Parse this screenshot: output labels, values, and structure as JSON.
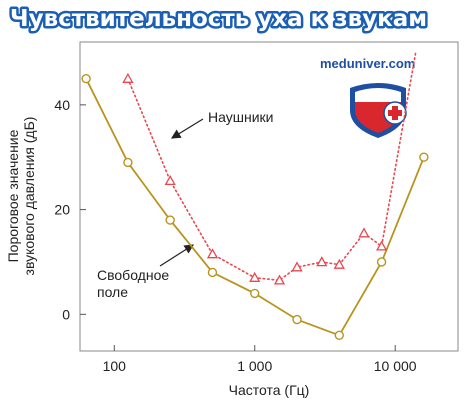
{
  "title": "Чувствительность уха к звукам",
  "watermark": "meduniver.com",
  "chart_data": {
    "type": "line",
    "xscale": "log",
    "xlim": [
      57,
      28000
    ],
    "ylim": [
      -7,
      52
    ],
    "xlabel": "Частота (Гц)",
    "ylabel_lines": [
      "Пороговое значение",
      "звукового давления (дБ)"
    ],
    "x_ticks": [
      {
        "value": 100,
        "label": "100"
      },
      {
        "value": 1000,
        "label": "1 000"
      },
      {
        "value": 10000,
        "label": "10 000"
      }
    ],
    "y_ticks": [
      {
        "value": 0,
        "label": "0"
      },
      {
        "value": 20,
        "label": "20"
      },
      {
        "value": 40,
        "label": "40"
      }
    ],
    "series": [
      {
        "name": "Свободное поле",
        "name_lines": [
          "Свободное",
          "поле"
        ],
        "style": "solid",
        "color": "#b8941f",
        "marker": "circle",
        "points": [
          {
            "x": 63,
            "y": 45
          },
          {
            "x": 125,
            "y": 29
          },
          {
            "x": 250,
            "y": 18
          },
          {
            "x": 500,
            "y": 8
          },
          {
            "x": 1000,
            "y": 4
          },
          {
            "x": 2000,
            "y": -1
          },
          {
            "x": 4000,
            "y": -4
          },
          {
            "x": 8000,
            "y": 10
          },
          {
            "x": 16000,
            "y": 30
          }
        ]
      },
      {
        "name": "Наушники",
        "name_lines": [
          "Наушники"
        ],
        "style": "dotted",
        "color": "#e8474f",
        "marker": "triangle",
        "points": [
          {
            "x": 125,
            "y": 45
          },
          {
            "x": 250,
            "y": 25.5
          },
          {
            "x": 500,
            "y": 11.5
          },
          {
            "x": 1000,
            "y": 7
          },
          {
            "x": 1500,
            "y": 6.5
          },
          {
            "x": 2000,
            "y": 9
          },
          {
            "x": 3000,
            "y": 10
          },
          {
            "x": 4000,
            "y": 9.5
          },
          {
            "x": 6000,
            "y": 15.5
          },
          {
            "x": 8000,
            "y": 13
          },
          {
            "x": 14000,
            "y": 50
          }
        ],
        "unmarked_last_point": true
      }
    ]
  }
}
